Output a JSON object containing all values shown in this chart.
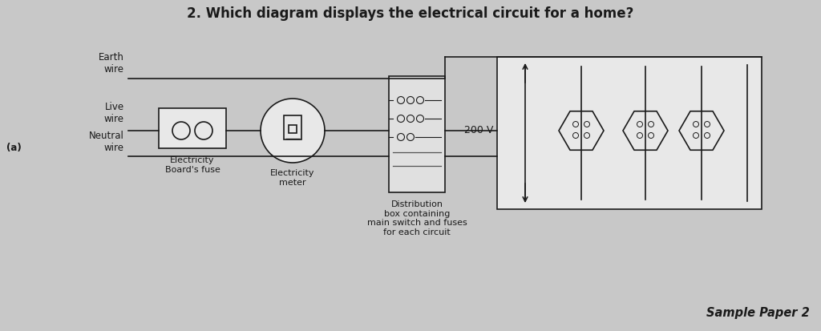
{
  "title": "2. Which diagram displays the electrical circuit for a home?",
  "question_label": "(a)",
  "background_color": "#c8c8c8",
  "line_color": "#1a1a1a",
  "labels": {
    "earth_wire": "Earth\nwire",
    "live_wire": "Live\nwire",
    "neutral_wire": "Neutral\nwire",
    "elec_board_fuse": "Electricity\nBoard's fuse",
    "elec_meter": "Electricity\nmeter",
    "distribution_box": "Distribution\nbox containing\nmain switch and fuses\nfor each circuit",
    "voltage": "200 V",
    "sample_paper": "Sample Paper 2"
  },
  "title_fontsize": 12,
  "label_fontsize": 8.5,
  "small_label_fontsize": 8
}
